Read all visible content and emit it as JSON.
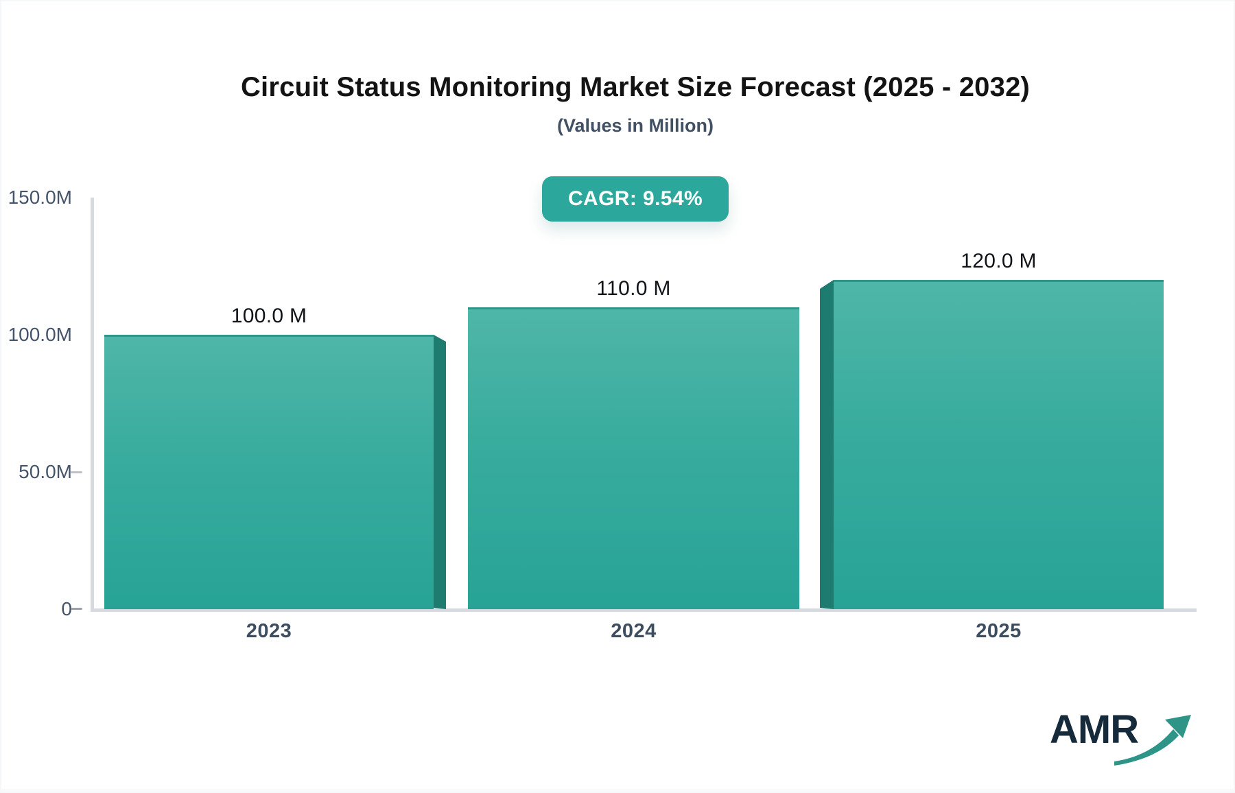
{
  "page": {
    "title": "Circuit Status Monitoring Market Size Forecast (2025 - 2032)",
    "subtitle": "(Values in Million)",
    "cagr_badge": "CAGR: 9.54%",
    "logo_text": "AMR"
  },
  "colors": {
    "bar_gradient_top": "#4FB6A8",
    "bar_gradient_bottom": "#27A396",
    "bar_top_border": "#2E958A",
    "bar_side_3d": "#1E7B6F",
    "badge_bg": "#2BA89B",
    "axis_line": "#D6D9DD",
    "axis_label": "#44546B",
    "year_label": "#3D4D60",
    "value_label": "#101418",
    "logo_navy": "#152A3B",
    "logo_teal": "#2E9488"
  },
  "chart_data": {
    "type": "bar",
    "title": "Circuit Status Monitoring Market Size Forecast (2025 - 2032)",
    "subtitle": "(Values in Million)",
    "unit": "Million",
    "categories": [
      "2023",
      "2024",
      "2025"
    ],
    "values": [
      100.0,
      110.0,
      120.0
    ],
    "value_labels": [
      "100.0 M",
      "110.0 M",
      "120.0 M"
    ],
    "annotations": [
      "CAGR: 9.54%"
    ],
    "y_ticks": [
      "150.0M",
      "100.0M",
      "50.0M",
      "0"
    ],
    "y_tick_values": [
      150,
      100,
      50,
      0
    ],
    "ylim": [
      0,
      150
    ],
    "xlabel": "",
    "ylabel": "",
    "grid": false,
    "legend": false,
    "style": "pseudo-3d teal bars"
  }
}
